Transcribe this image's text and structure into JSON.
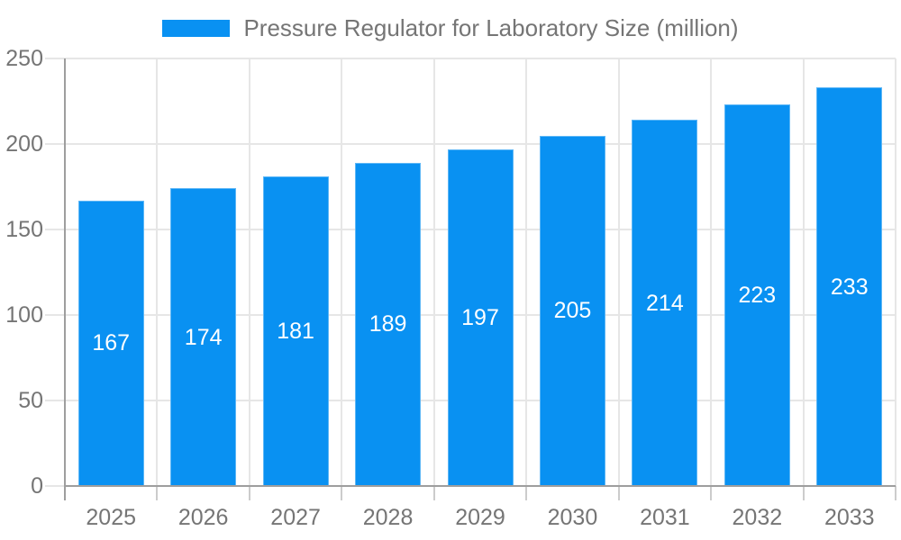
{
  "chart_data": {
    "type": "bar",
    "title": "Pressure Regulator for Laboratory Size (million)",
    "legend_position": "top",
    "categories": [
      "2025",
      "2026",
      "2027",
      "2028",
      "2029",
      "2030",
      "2031",
      "2032",
      "2033"
    ],
    "values": [
      167,
      174,
      181,
      189,
      197,
      205,
      214,
      223,
      233
    ],
    "series": [
      {
        "name": "Pressure Regulator for Laboratory Size (million)",
        "values": [
          167,
          174,
          181,
          189,
          197,
          205,
          214,
          223,
          233
        ]
      }
    ],
    "xlabel": "",
    "ylabel": "",
    "ylim": [
      0,
      250
    ],
    "yticks": [
      0,
      50,
      100,
      150,
      200,
      250
    ],
    "grid": true,
    "value_labels": "inside-center",
    "colors": {
      "bar": "#0991f2",
      "value_label": "#ffffff",
      "axis_line": "#9e9e9e",
      "tick": "#cccccc",
      "gridline": "#e6e6e6",
      "text_label": "#757575",
      "background": "#ffffff"
    }
  }
}
